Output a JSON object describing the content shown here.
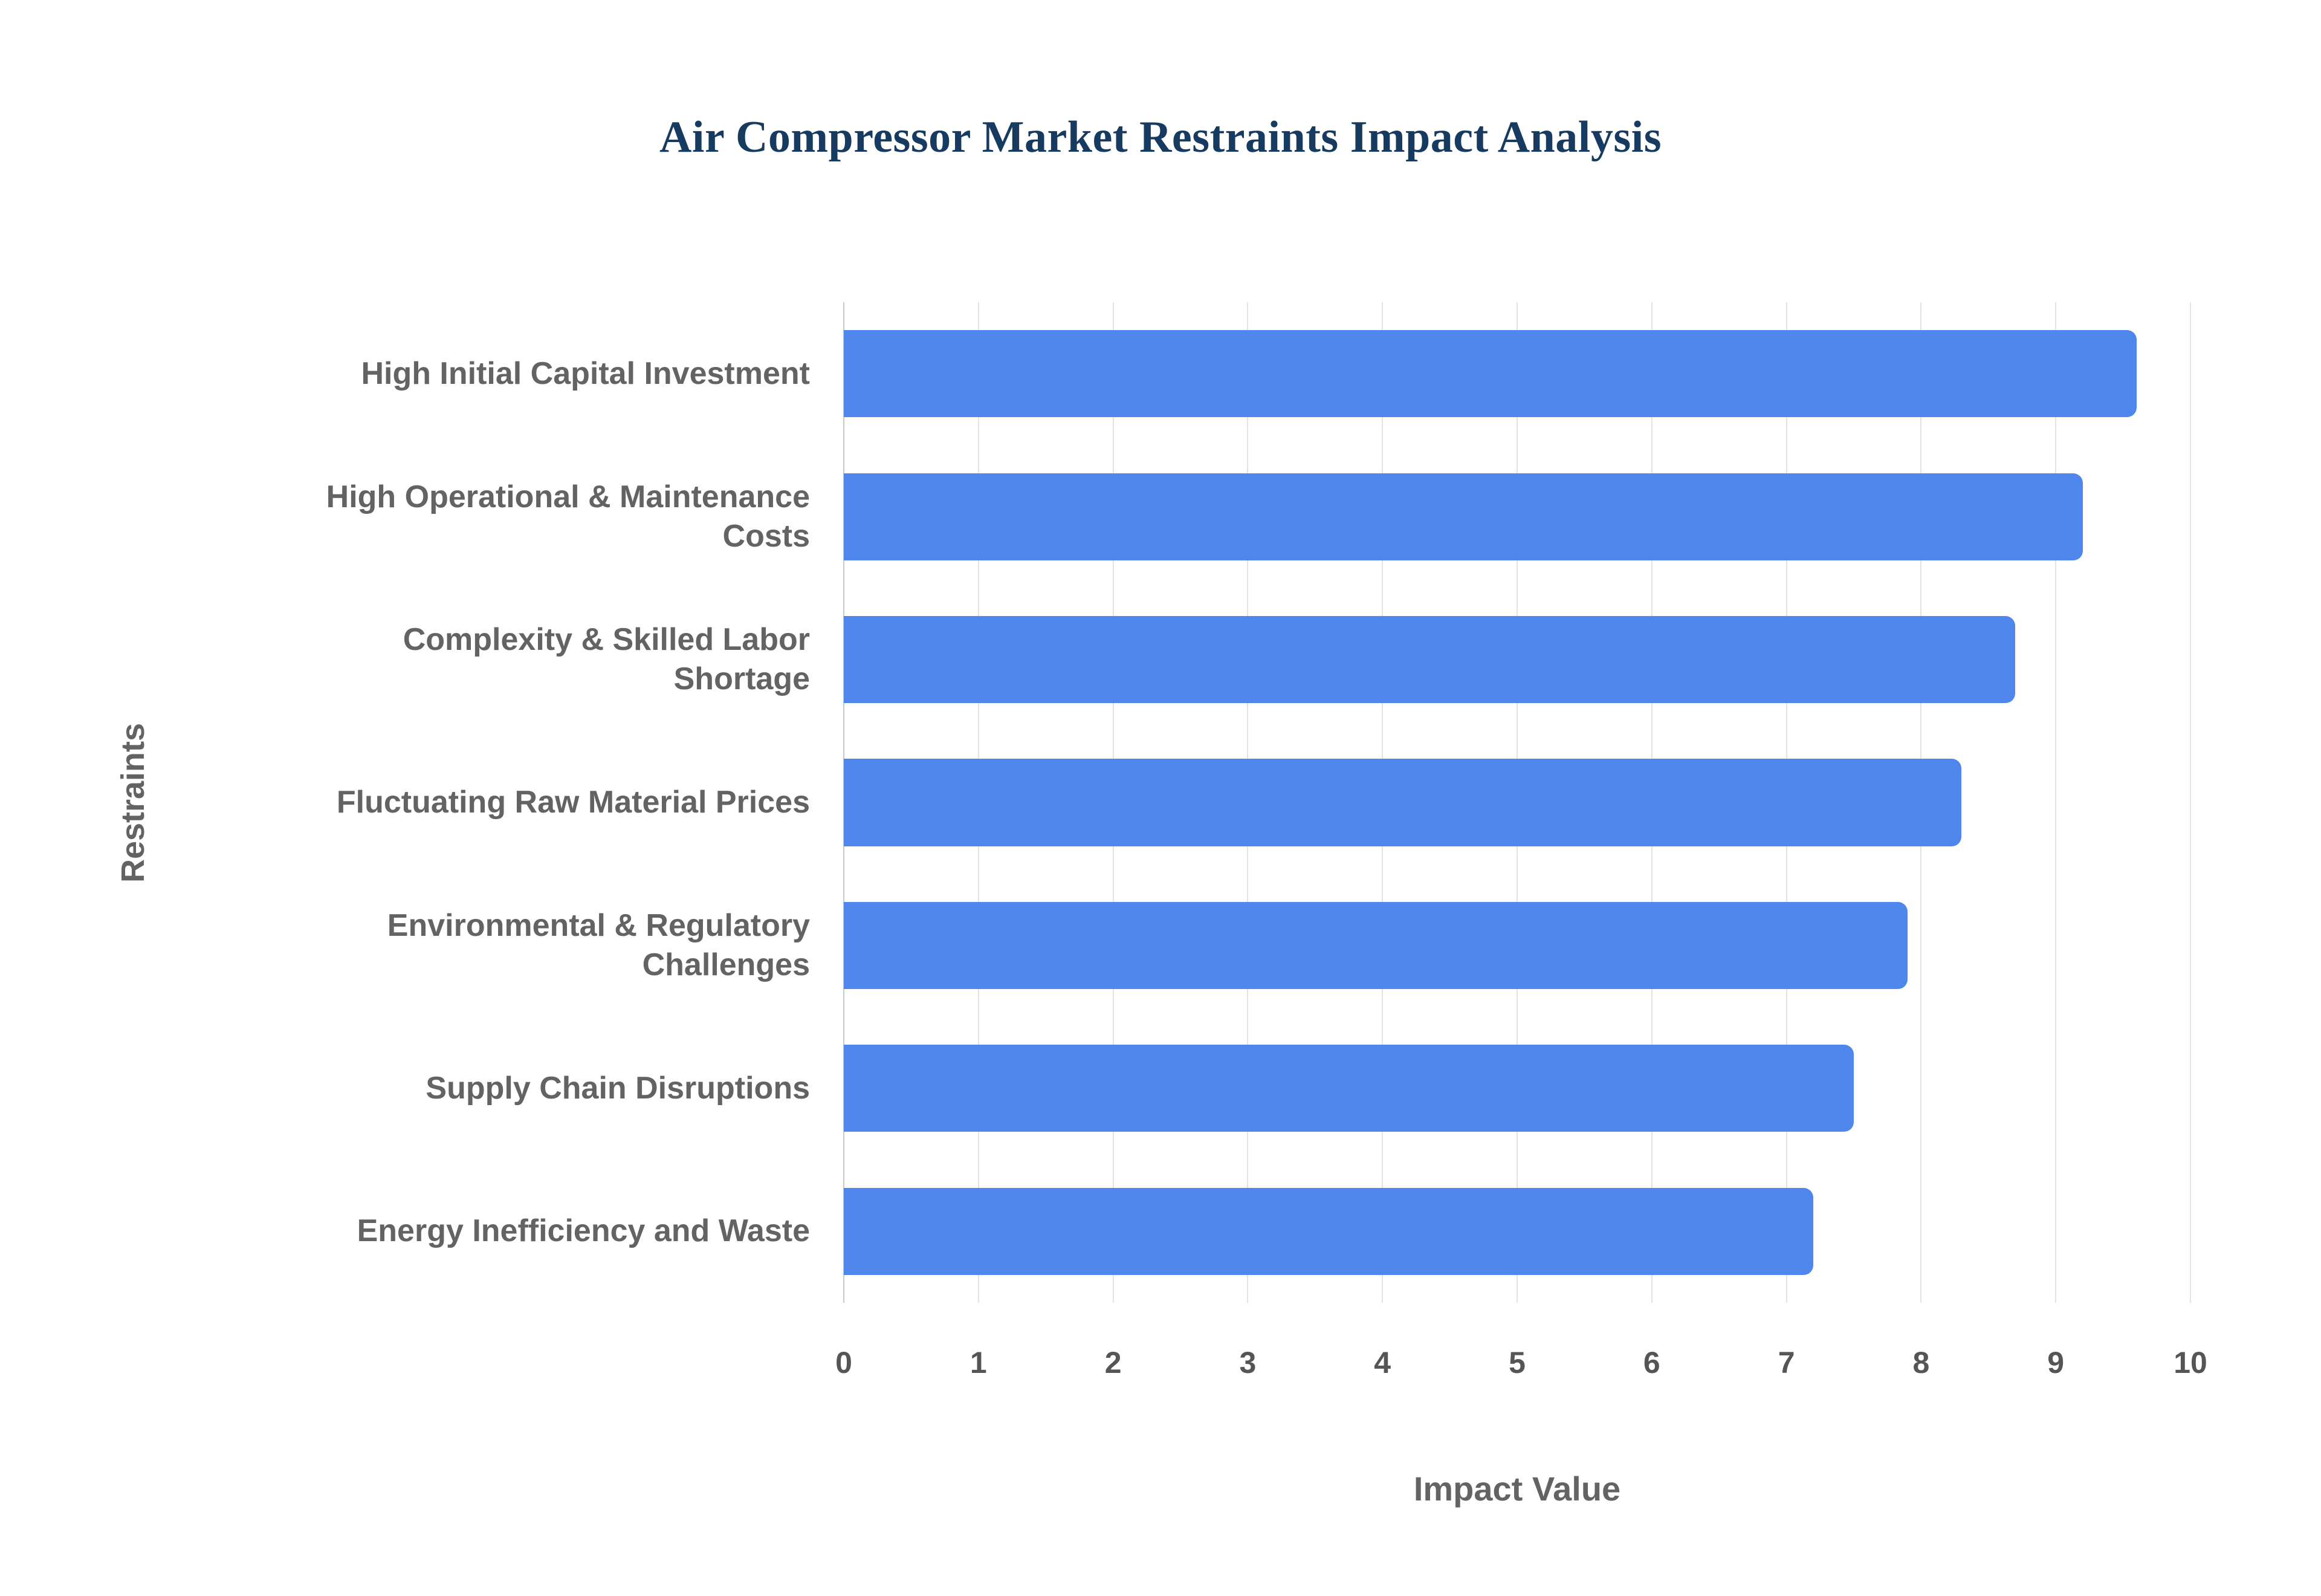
{
  "title": "Air Compressor Market Restraints Impact Analysis",
  "chart_data": {
    "type": "bar",
    "orientation": "horizontal",
    "title": "Air Compressor Market Restraints Impact Analysis",
    "categories": [
      "High Initial Capital Investment",
      "High Operational & Maintenance Costs",
      "Complexity & Skilled Labor Shortage",
      "Fluctuating Raw Material Prices",
      "Environmental & Regulatory Challenges",
      "Supply Chain Disruptions",
      "Energy Inefficiency and Waste"
    ],
    "values": [
      9.6,
      9.2,
      8.7,
      8.3,
      7.9,
      7.5,
      7.2
    ],
    "xlabel": "Impact Value",
    "ylabel": "Restraints",
    "xlim": [
      0,
      10
    ],
    "xticks": [
      0,
      1,
      2,
      3,
      4,
      5,
      6,
      7,
      8,
      9,
      10
    ],
    "bar_color": "#4f86ec",
    "grid": true,
    "legend": "none",
    "background": "#ffffff"
  }
}
